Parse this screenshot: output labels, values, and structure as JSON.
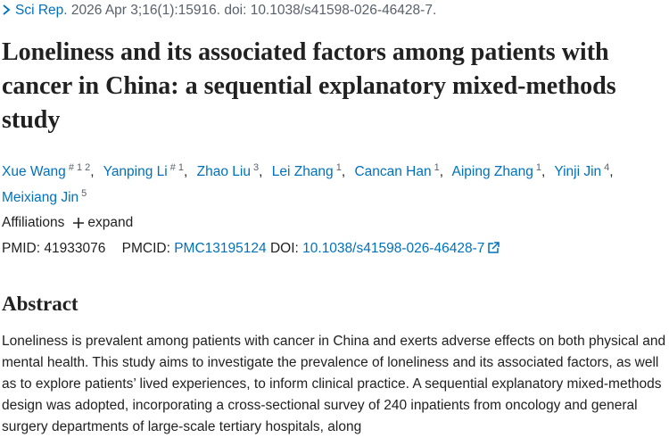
{
  "citation": {
    "journal": "Sci Rep.",
    "details": "2026 Apr 3;16(1):15916. doi: 10.1038/s41598-026-46428-7."
  },
  "title": "Loneliness and its associated factors among patients with cancer in China: a sequential explanatory mixed-methods study",
  "authors": [
    {
      "name": "Xue Wang",
      "sup": "# 1 2"
    },
    {
      "name": "Yanping Li",
      "sup": "# 1"
    },
    {
      "name": "Zhao Liu",
      "sup": "3"
    },
    {
      "name": "Lei Zhang",
      "sup": "1"
    },
    {
      "name": "Cancan Han",
      "sup": "1"
    },
    {
      "name": "Aiping Zhang",
      "sup": "1"
    },
    {
      "name": "Yinji Jin",
      "sup": "4"
    },
    {
      "name": "Meixiang Jin",
      "sup": "5"
    }
  ],
  "affiliations": {
    "label": "Affiliations",
    "toggle": "expand"
  },
  "identifiers": {
    "pmid_label": "PMID:",
    "pmid": "41933076",
    "pmcid_label": "PMCID:",
    "pmcid": "PMC13195124",
    "doi_label": "DOI:",
    "doi": "10.1038/s41598-026-46428-7"
  },
  "abstract": {
    "heading": "Abstract",
    "text": "Loneliness is prevalent among patients with cancer in China and exerts adverse effects on both physical and mental health. This study aims to investigate the prevalence of loneliness and its associated factors, as well as to explore patients’ lived experiences, to inform clinical practice. A sequential explanatory mixed-methods design was adopted, incorporating a cross-sectional survey of 240 inpatients from oncology and general surgery departments of large-scale tertiary hospitals, along"
  }
}
